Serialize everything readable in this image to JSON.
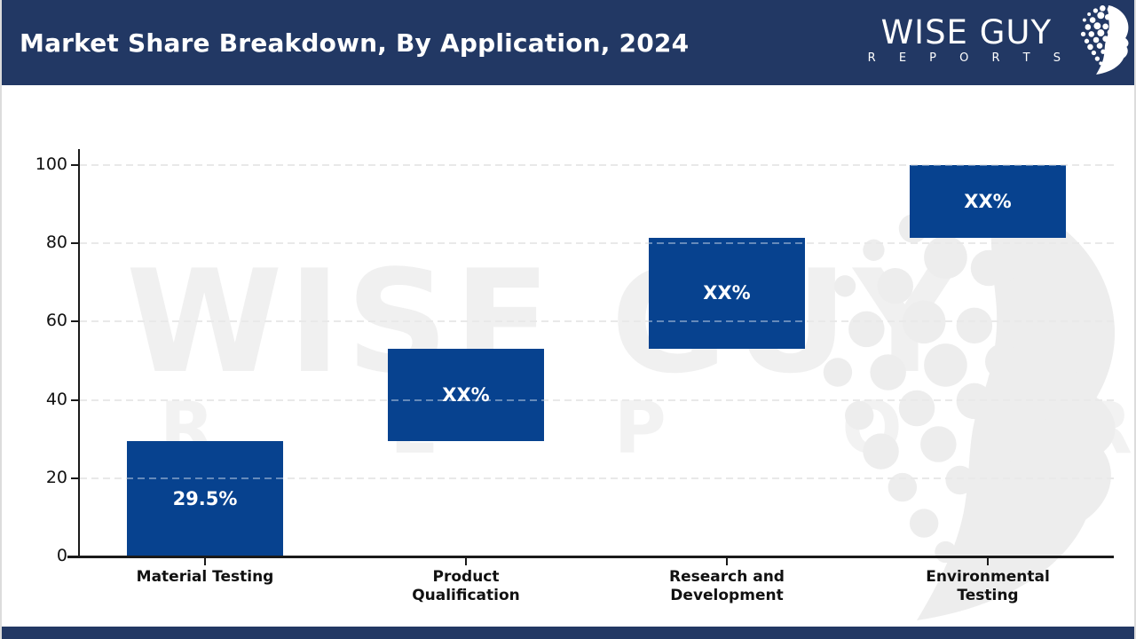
{
  "header": {
    "title": "Market Share Breakdown, By Application, 2024",
    "logo": {
      "line1": "WISE GUY",
      "line2": "R E P O R T S"
    }
  },
  "watermark": {
    "line1": "WISE GUY",
    "line2": "R E P O R T S"
  },
  "footer": {},
  "colors": {
    "header_bg": "#223864",
    "footer_bg": "#223864",
    "bar": "#07428f",
    "grid": "#dcdcdc",
    "bar_label": "#ffffff"
  },
  "chart_data": {
    "type": "bar",
    "subtype": "waterfall",
    "title": "Market Share Breakdown, By Application, 2024",
    "xlabel": "",
    "ylabel": "",
    "ylim": [
      0,
      100
    ],
    "yticks": [
      0,
      20,
      40,
      60,
      80,
      100
    ],
    "grid": "horizontal-dashed",
    "legend": "none",
    "bar_color": "#07428f",
    "categories": [
      "Material Testing",
      "Product Qualification",
      "Research and Development",
      "Environmental Testing"
    ],
    "category_lines": [
      [
        "Material Testing"
      ],
      [
        "Product",
        "Qualification"
      ],
      [
        "Research and",
        "Development"
      ],
      [
        "Environmental",
        "Testing"
      ]
    ],
    "segments": [
      {
        "category": "Material Testing",
        "start": 0,
        "end": 29.5,
        "label": "29.5%"
      },
      {
        "category": "Product Qualification",
        "start": 29.5,
        "end": 53,
        "label": "XX%"
      },
      {
        "category": "Research and Development",
        "start": 53,
        "end": 81.5,
        "label": "XX%"
      },
      {
        "category": "Environmental Testing",
        "start": 81.5,
        "end": 100,
        "label": "XX%"
      }
    ]
  }
}
